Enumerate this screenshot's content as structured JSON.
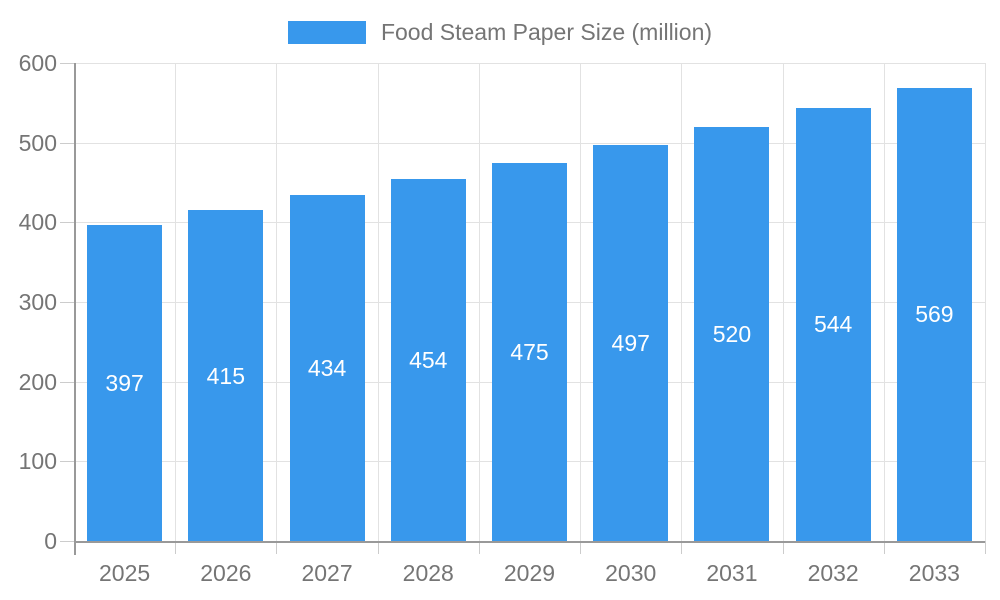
{
  "legend": {
    "label": "Food Steam Paper Size (million)"
  },
  "chart_data": {
    "type": "bar",
    "title": "Food Steam Paper Size (million)",
    "categories": [
      "2025",
      "2026",
      "2027",
      "2028",
      "2029",
      "2030",
      "2031",
      "2032",
      "2033"
    ],
    "values": [
      397,
      415,
      434,
      454,
      475,
      497,
      520,
      544,
      569
    ],
    "xlabel": "",
    "ylabel": "",
    "ylim": [
      0,
      600
    ],
    "ytick_interval": 100,
    "ytick_labels": [
      "0",
      "100",
      "200",
      "300",
      "400",
      "500",
      "600"
    ],
    "grid": true,
    "legend_position": "top",
    "bar_label_position": "center",
    "colors": {
      "bar": "#3898EC",
      "bar_label": "#ffffff",
      "legend_text": "#757575",
      "axis_text": "#757575",
      "axis_line": "#999999",
      "grid_line": "#e2e2e2",
      "tick_line": "#cccccc",
      "background": "#ffffff"
    }
  }
}
